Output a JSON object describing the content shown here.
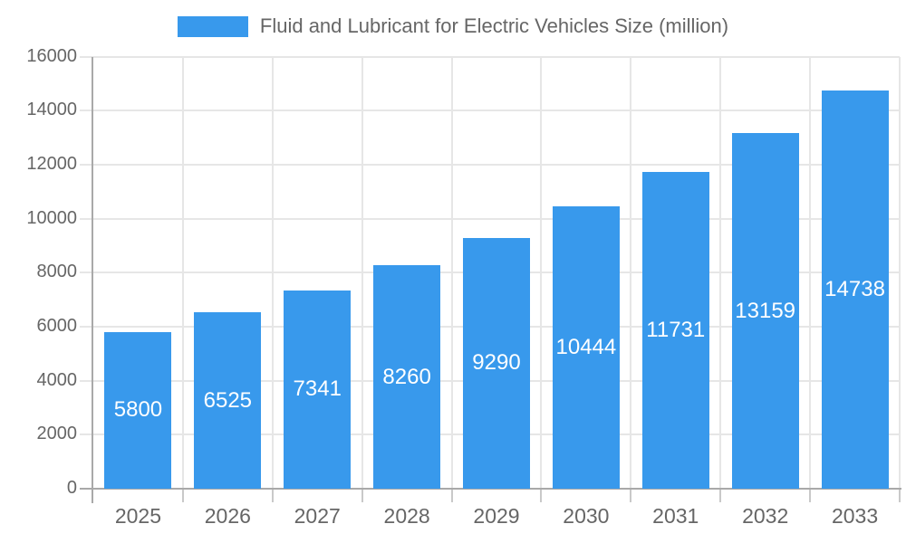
{
  "legend": {
    "label": "Fluid and Lubricant for Electric Vehicles Size (million)",
    "swatch_color": "#3899EC"
  },
  "chart_data": {
    "type": "bar",
    "title": "Fluid and Lubricant for Electric Vehicles Size (million)",
    "categories": [
      "2025",
      "2026",
      "2027",
      "2028",
      "2029",
      "2030",
      "2031",
      "2032",
      "2033"
    ],
    "values": [
      5800,
      6525,
      7341,
      8260,
      9290,
      10444,
      11731,
      13159,
      14738
    ],
    "xlabel": "",
    "ylabel": "",
    "ylim": [
      0,
      16000
    ],
    "ytick_step": 2000,
    "ytick_labels": [
      "0",
      "2000",
      "4000",
      "6000",
      "8000",
      "10000",
      "12000",
      "14000",
      "16000"
    ],
    "grid": true,
    "legend_position": "top",
    "bar_color": "#3899EC",
    "value_label_color": "#ffffff",
    "axis_color": "#a9a9a9",
    "grid_color": "#e6e6e6",
    "tick_text_color": "#666666"
  }
}
